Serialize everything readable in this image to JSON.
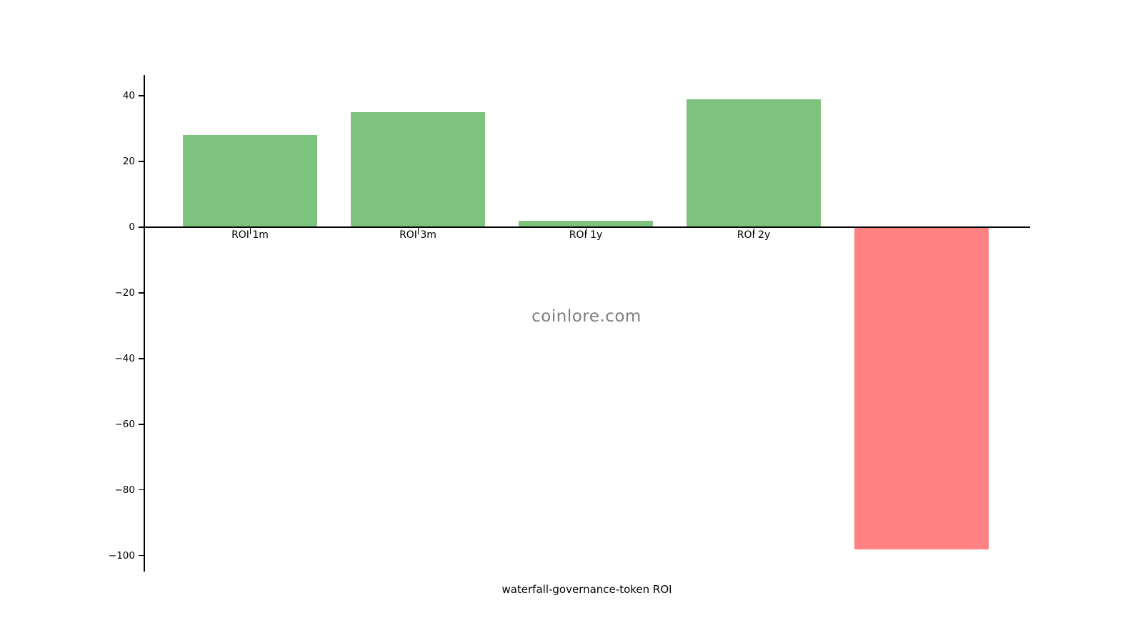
{
  "watermark": "coinlore.com",
  "colors": {
    "positive_bar": "#7dc27d",
    "negative_bar": "#ff8181",
    "axis": "#000000",
    "watermark_text": "#7d7d7d",
    "label_text": "#000000"
  },
  "chart_data": {
    "type": "bar",
    "categories": [
      "ROI 1m",
      "ROI 3m",
      "ROI 1y",
      "ROI 2y",
      ""
    ],
    "values": [
      28,
      35,
      2,
      39,
      -98
    ],
    "bar_colors": [
      "positive",
      "positive",
      "positive",
      "positive",
      "negative"
    ],
    "title": "waterfall-governance-token ROI",
    "xlabel": "",
    "ylabel": "",
    "ylim": [
      -105,
      46
    ],
    "yticks": [
      40,
      20,
      0,
      -20,
      -40,
      -60,
      -80,
      -100
    ],
    "grid": false,
    "legend": null,
    "annotations": [
      "coinlore.com"
    ]
  }
}
